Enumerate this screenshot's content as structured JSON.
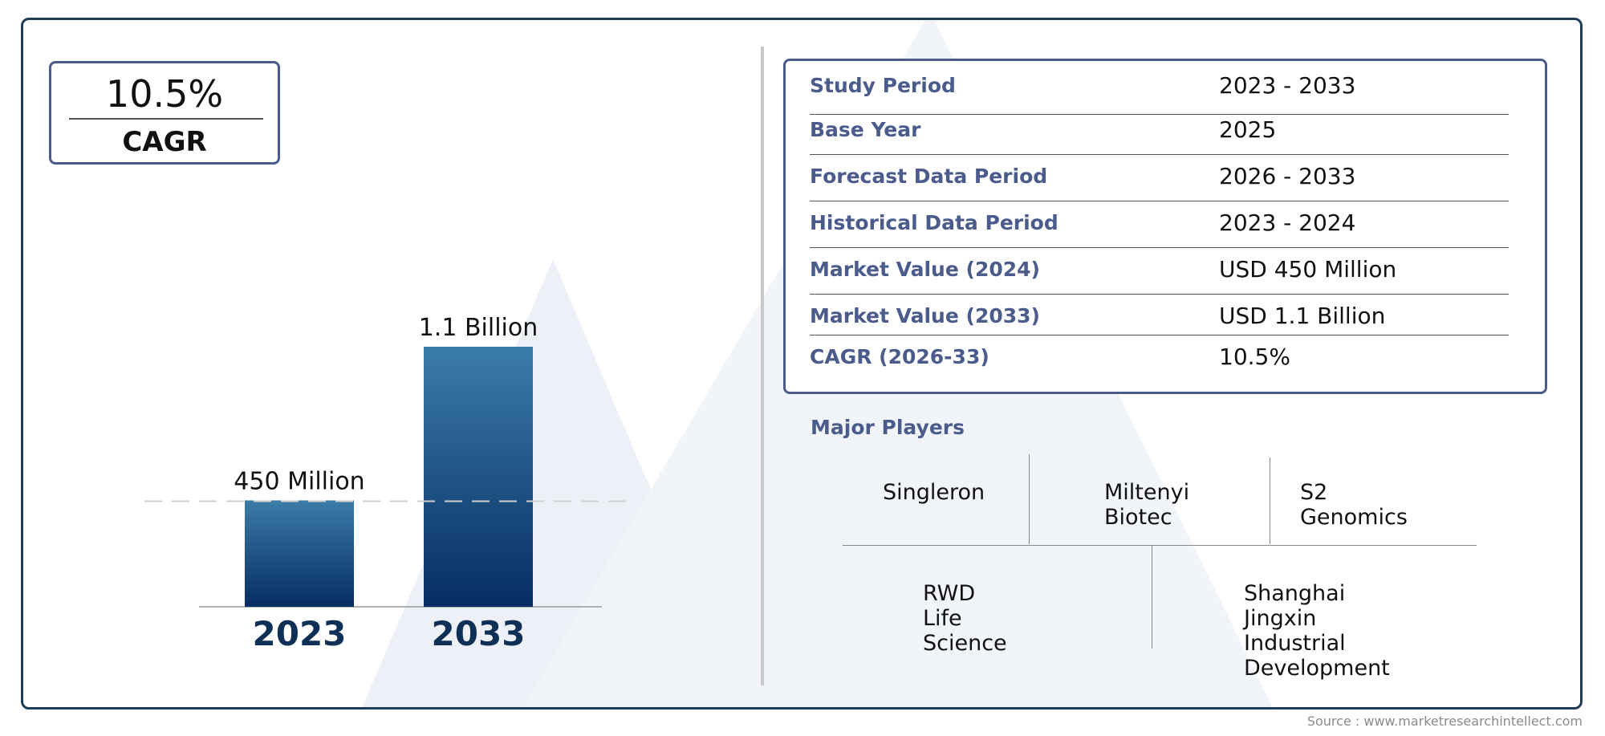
{
  "cagr": {
    "value": "10.5%",
    "label": "CAGR"
  },
  "chart_data": {
    "type": "bar",
    "categories": [
      "2023",
      "2033"
    ],
    "values": [
      450,
      1100
    ],
    "value_labels": [
      "450 Million",
      "1.1 Billion"
    ],
    "unit": "Million USD",
    "title": "",
    "xlabel": "",
    "ylabel": "",
    "ylim": [
      0,
      1250
    ],
    "grid": false,
    "colors": {
      "bar_top": "#3b7ca8",
      "bar_bottom": "#062d62",
      "category_label": "#0e2f56"
    }
  },
  "info_table": [
    {
      "label": "Study Period",
      "value": "2023 - 2033"
    },
    {
      "label": "Base Year",
      "value": "2025"
    },
    {
      "label": "Forecast Data Period",
      "value": "2026 - 2033"
    },
    {
      "label": "Historical Data Period",
      "value": "2023 - 2024"
    },
    {
      "label": "Market Value (2024)",
      "value": "USD 450 Million"
    },
    {
      "label": "Market Value (2033)",
      "value": "USD 1.1 Billion"
    },
    {
      "label": "CAGR (2026-33)",
      "value": "10.5%"
    }
  ],
  "players_title": "Major Players",
  "players": [
    [
      "Singleron"
    ],
    [
      "Miltenyi",
      "Biotec"
    ],
    [
      "S2 Genomics"
    ],
    [
      "RWD Life Science"
    ],
    [
      "Shanghai Jingxin",
      "Industrial Development"
    ]
  ],
  "source": "Source : www.marketresearchintellect.com",
  "colors": {
    "frame": "#1f3d57",
    "accent": "#4a5b8c",
    "watermark": "#e9eef5"
  }
}
